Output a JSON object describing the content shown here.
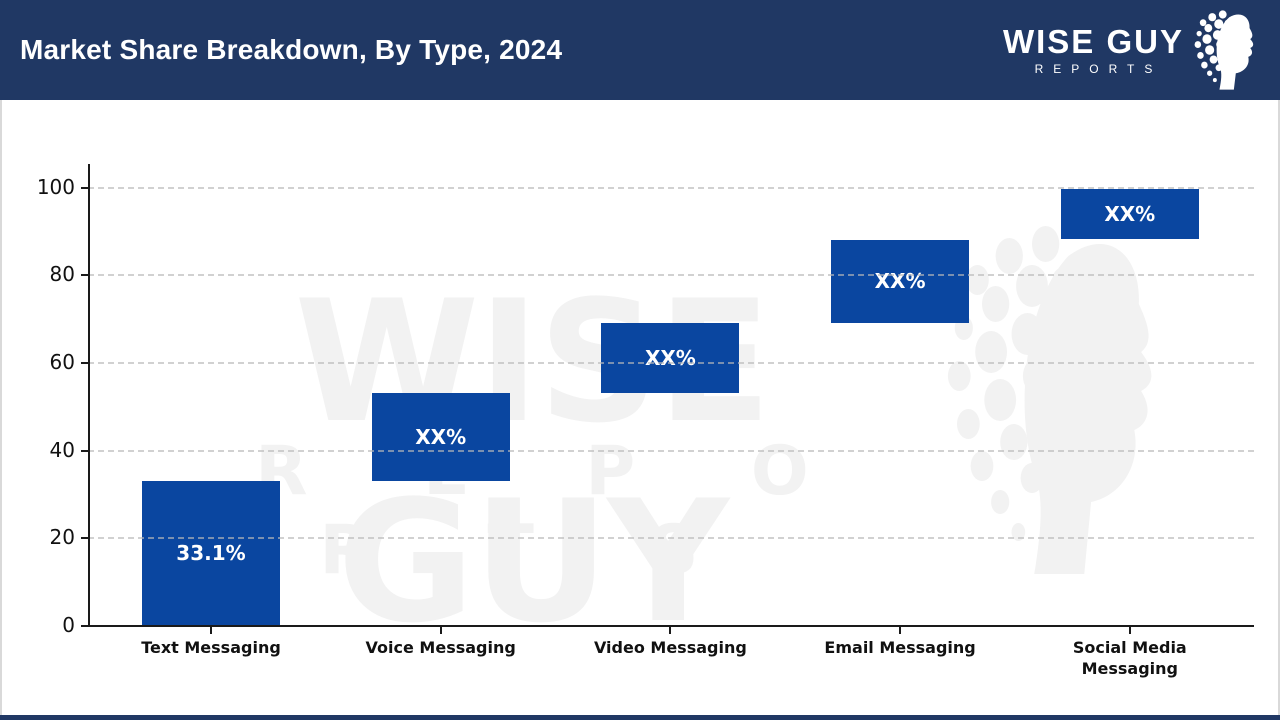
{
  "header": {
    "title": "Market Share Breakdown, By Type, 2024",
    "logo": {
      "name": "WISE GUY",
      "sub": "REPORTS"
    }
  },
  "watermark": {
    "name": "WISE GUY",
    "sub": "R E P O R T S"
  },
  "colors": {
    "header_bg": "#203864",
    "bar": "#0a46a0",
    "bar_label": "#ffffff",
    "axis": "#1a1a1a",
    "gridline": "#d9d9d9",
    "watermark": "#f2f2f2"
  },
  "chart_data": {
    "type": "bar",
    "subtype": "waterfall (floating cumulative bars)",
    "title": "Market Share Breakdown, By Type, 2024",
    "xlabel": "",
    "ylabel": "",
    "unit": "%",
    "ylim": [
      0,
      105
    ],
    "yticks": [
      0,
      20,
      40,
      60,
      80,
      100
    ],
    "grid": "horizontal dashed",
    "legend": "none",
    "categories": [
      "Text Messaging",
      "Voice Messaging",
      "Video Messaging",
      "Email Messaging",
      "Social Media Messaging"
    ],
    "bars": [
      {
        "category": "Text Messaging",
        "start": 0,
        "end": 33.1,
        "label": "33.1%"
      },
      {
        "category": "Voice Messaging",
        "start": 33.1,
        "end": 53.1,
        "label": "XX%"
      },
      {
        "category": "Video Messaging",
        "start": 53.2,
        "end": 69.1,
        "label": "XX%"
      },
      {
        "category": "Email Messaging",
        "start": 69.1,
        "end": 88.1,
        "label": "XX%"
      },
      {
        "category": "Social Media Messaging",
        "start": 88.2,
        "end": 99.8,
        "label": "XX%"
      }
    ]
  }
}
